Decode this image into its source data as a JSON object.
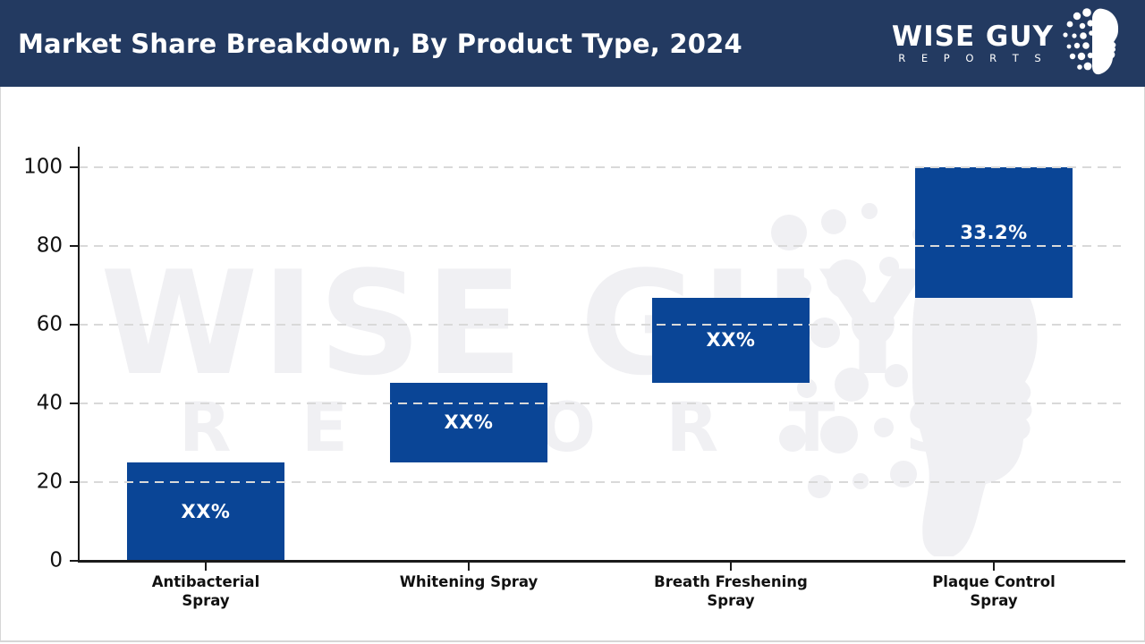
{
  "header": {
    "title": "Market Share Breakdown, By Product Type, 2024",
    "logo": {
      "name": "WISE GUY",
      "sub": "R E P O R T S"
    }
  },
  "watermark": {
    "line1": "WISE GUY",
    "line2": "R E P O R T S"
  },
  "chart_data": {
    "type": "bar",
    "subtype": "waterfall",
    "title": "Market Share Breakdown, By Product Type, 2024",
    "categories": [
      "Antibacterial Spray",
      "Whitening Spray",
      "Breath Freshening Spray",
      "Plaque Control Spray"
    ],
    "category_label_lines": [
      [
        "Antibacterial",
        "Spray"
      ],
      [
        "Whitening Spray"
      ],
      [
        "Breath Freshening",
        "Spray"
      ],
      [
        "Plaque Control",
        "Spray"
      ]
    ],
    "segments": [
      {
        "category": "Antibacterial Spray",
        "start": 0,
        "end": 25.0,
        "value": 25.0,
        "value_label": "XX%"
      },
      {
        "category": "Whitening Spray",
        "start": 25.0,
        "end": 45.3,
        "value": 20.3,
        "value_label": "XX%"
      },
      {
        "category": "Breath Freshening Spray",
        "start": 45.3,
        "end": 66.8,
        "value": 21.5,
        "value_label": "XX%"
      },
      {
        "category": "Plaque Control Spray",
        "start": 66.8,
        "end": 100.0,
        "value": 33.2,
        "value_label": "33.2%"
      }
    ],
    "xlabel": "",
    "ylabel": "",
    "yticks": [
      0,
      20,
      40,
      60,
      80,
      100
    ],
    "ylim": [
      0,
      105
    ],
    "grid": {
      "horizontal": true,
      "style": "dashed",
      "drawn_over_bars": true
    },
    "legend": "none",
    "colors": {
      "bar": "#0a4596",
      "bar_label": "#ffffff",
      "header_bg": "#233a61",
      "axis": "#1a1a1a",
      "gridline": "#d9d9d9",
      "watermark": "#f0f0f3"
    }
  }
}
